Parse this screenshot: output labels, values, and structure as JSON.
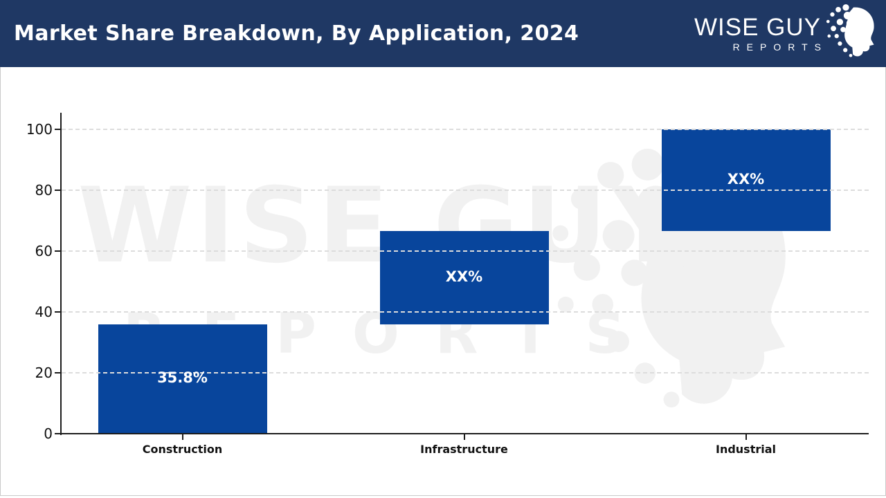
{
  "header": {
    "title": "Market Share Breakdown, By Application, 2024",
    "bg_color": "#1F3864",
    "logo": {
      "line1": "WISE GUY",
      "line2": "REPORTS"
    }
  },
  "watermark": {
    "line1": "WISE GUY",
    "line2": "REPORTS"
  },
  "chart_data": {
    "type": "bar",
    "variant": "waterfall",
    "title": "Market Share Breakdown, By Application, 2024",
    "categories": [
      "Construction",
      "Infrastructure",
      "Industrial"
    ],
    "segments": [
      {
        "category": "Construction",
        "start": 0,
        "end": 35.8,
        "label": "35.8%"
      },
      {
        "category": "Infrastructure",
        "start": 35.8,
        "end": 66.5,
        "label": "XX%"
      },
      {
        "category": "Industrial",
        "start": 66.5,
        "end": 100,
        "label": "XX%"
      }
    ],
    "xlabel": "",
    "ylabel": "",
    "ylim": [
      0,
      100
    ],
    "yticks": [
      0,
      20,
      40,
      60,
      80,
      100
    ],
    "grid": "horizontal-dashed-above-bars",
    "legend": "none",
    "bar_color": "#08459C",
    "grid_color": "#dcdcdc",
    "axis_color": "#1c1c1c"
  }
}
